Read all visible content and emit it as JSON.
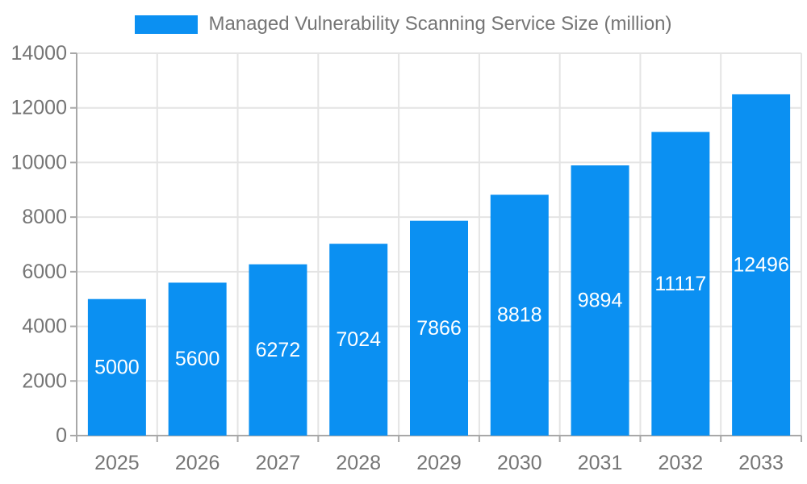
{
  "legend": {
    "label": "Managed Vulnerability Scanning Service Size (million)"
  },
  "chart_data": {
    "type": "bar",
    "title": "Managed Vulnerability Scanning Service Size (million)",
    "categories": [
      "2025",
      "2026",
      "2027",
      "2028",
      "2029",
      "2030",
      "2031",
      "2032",
      "2033"
    ],
    "values": [
      5000,
      5600,
      6272,
      7024,
      7866,
      8818,
      9894,
      11117,
      12496
    ],
    "series_name": "Managed Vulnerability Scanning Service Size (million)",
    "xlabel": "",
    "ylabel": "",
    "ylim": [
      0,
      14000
    ],
    "ytick_interval": 2000,
    "ytick_labels": [
      "0",
      "2000",
      "4000",
      "6000",
      "8000",
      "10000",
      "12000",
      "14000"
    ],
    "bar_value_labels_visible": true,
    "legend_position": "top-center",
    "grid": true,
    "colors": {
      "bar": "#0b90f2",
      "bar_value_label": "#ffffff",
      "grid_line": "#e4e4e4",
      "axis_line": "#a8a8a8",
      "tick_text": "#757575",
      "legend_text": "#757575",
      "background": "#ffffff"
    }
  }
}
